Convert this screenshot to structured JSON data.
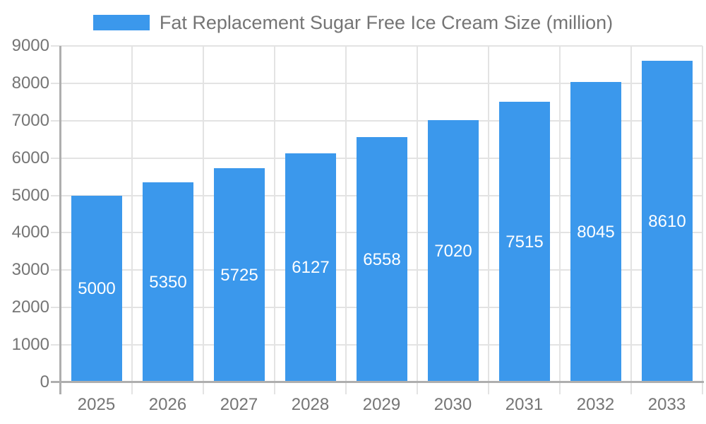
{
  "chart_data": {
    "type": "bar",
    "title": "Fat Replacement Sugar Free Ice Cream Size (million)",
    "legend_position": "top",
    "legend_entries": [
      "Fat Replacement Sugar Free Ice Cream Size (million)"
    ],
    "categories": [
      "2025",
      "2026",
      "2027",
      "2028",
      "2029",
      "2030",
      "2031",
      "2032",
      "2033"
    ],
    "series": [
      {
        "name": "Fat Replacement Sugar Free Ice Cream Size (million)",
        "values": [
          5000,
          5350,
          5725,
          6127,
          6558,
          7020,
          7515,
          8045,
          8610
        ]
      }
    ],
    "bar_labels": [
      "5000",
      "5350",
      "5725",
      "6127",
      "6558",
      "7020",
      "7515",
      "8045",
      "8610"
    ],
    "xlabel": "",
    "ylabel": "",
    "ylim": [
      0,
      9000
    ],
    "ytick_step": 1000,
    "yticks": [
      0,
      1000,
      2000,
      3000,
      4000,
      5000,
      6000,
      7000,
      8000,
      9000
    ],
    "grid": true,
    "colors": {
      "bar": "#3b98ec",
      "bar_label_text": "#ffffff",
      "grid_line": "#e3e3e3",
      "axis_line": "#aeaeae",
      "axis_text": "#757575",
      "background": "#ffffff"
    }
  }
}
